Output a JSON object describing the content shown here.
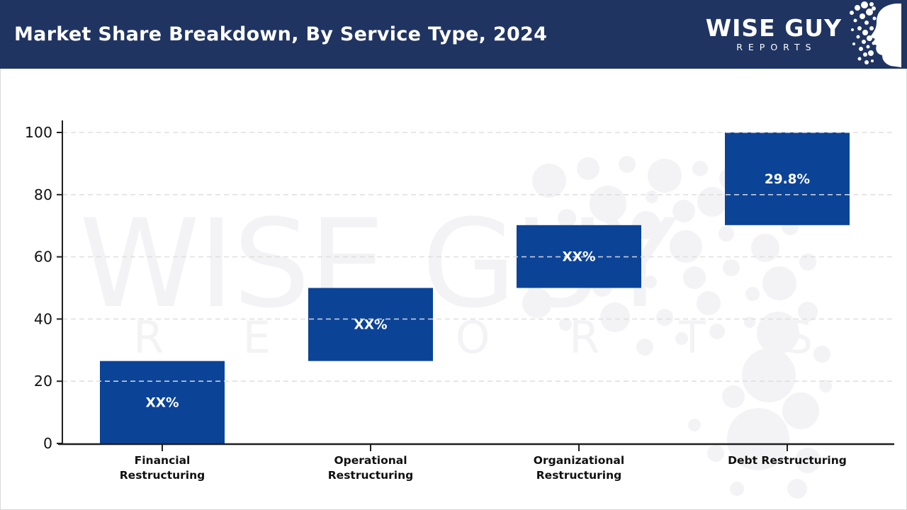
{
  "header": {
    "title": "Market Share Breakdown, By Service Type, 2024",
    "bg_color": "#203462",
    "logo": {
      "line1": "WISE GUY",
      "line2": "REPORTS"
    }
  },
  "watermark": {
    "line1": "WISE GUY",
    "line2": "R E P O R T S"
  },
  "chart_data": {
    "type": "bar",
    "variant": "floating-waterfall",
    "title": "Market Share Breakdown, By Service Type, 2024",
    "categories": [
      [
        "Financial",
        "Restructuring"
      ],
      [
        "Operational",
        "Restructuring"
      ],
      [
        "Organizational",
        "Restructuring"
      ],
      [
        "Debt Restructuring"
      ]
    ],
    "segments": [
      {
        "start": 0,
        "end": 26.5,
        "label": "XX%"
      },
      {
        "start": 26.5,
        "end": 50,
        "label": "XX%"
      },
      {
        "start": 50,
        "end": 70.2,
        "label": "XX%"
      },
      {
        "start": 70.2,
        "end": 100,
        "label": "29.8%"
      }
    ],
    "values": [
      26.5,
      23.5,
      20.2,
      29.8
    ],
    "xlabel": "",
    "ylabel": "",
    "ylim": [
      0,
      100
    ],
    "yticks": [
      0,
      20,
      40,
      60,
      80,
      100
    ],
    "grid": "horizontal-dashed",
    "legend": "none",
    "colors": {
      "bar": "#0b4397",
      "bar_label": "#ffffff",
      "grid": "#dedede",
      "axis": "#1f1f1f",
      "tick_label": "#111111"
    }
  }
}
